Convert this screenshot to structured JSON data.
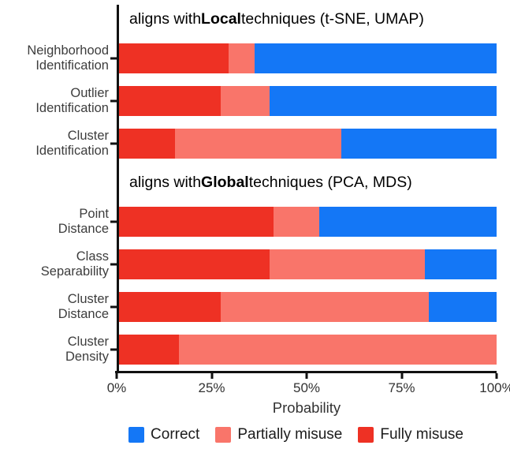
{
  "chart_data": {
    "type": "bar",
    "orientation": "horizontal",
    "stacked": true,
    "title": "",
    "xlabel": "Probability",
    "ylabel": "",
    "xlim": [
      0,
      100
    ],
    "x_ticks": [
      {
        "value": 0,
        "label": "0%"
      },
      {
        "value": 25,
        "label": "25%"
      },
      {
        "value": 50,
        "label": "50%"
      },
      {
        "value": 75,
        "label": "75%"
      },
      {
        "value": 100,
        "label": "100%"
      }
    ],
    "grid": false,
    "legend_position": "bottom",
    "series_order": [
      "fully_misuse",
      "partially_misuse",
      "correct"
    ],
    "series_colors": {
      "correct": "#1477F6",
      "partially_misuse": "#F9756A",
      "fully_misuse": "#EE3124"
    },
    "groups": [
      {
        "header": {
          "prefix": "aligns with ",
          "bold": "Local",
          "suffix": " techniques (t-SNE, UMAP)"
        },
        "rows": [
          {
            "label_line1": "Neighborhood",
            "label_line2": "Identification",
            "values": {
              "fully_misuse": 29,
              "partially_misuse": 7,
              "correct": 64
            }
          },
          {
            "label_line1": "Outlier",
            "label_line2": "Identification",
            "values": {
              "fully_misuse": 27,
              "partially_misuse": 13,
              "correct": 60
            }
          },
          {
            "label_line1": "Cluster",
            "label_line2": "Identification",
            "values": {
              "fully_misuse": 15,
              "partially_misuse": 44,
              "correct": 41
            }
          }
        ]
      },
      {
        "header": {
          "prefix": "aligns with ",
          "bold": "Global",
          "suffix": " techniques (PCA, MDS)"
        },
        "rows": [
          {
            "label_line1": "Point",
            "label_line2": "Distance",
            "values": {
              "fully_misuse": 41,
              "partially_misuse": 12,
              "correct": 47
            }
          },
          {
            "label_line1": "Class",
            "label_line2": "Separability",
            "values": {
              "fully_misuse": 40,
              "partially_misuse": 41,
              "correct": 19
            }
          },
          {
            "label_line1": "Cluster",
            "label_line2": "Distance",
            "values": {
              "fully_misuse": 27,
              "partially_misuse": 55,
              "correct": 18
            }
          },
          {
            "label_line1": "Cluster",
            "label_line2": "Density",
            "values": {
              "fully_misuse": 16,
              "partially_misuse": 84,
              "correct": 0
            }
          }
        ]
      }
    ]
  },
  "legend": {
    "items": [
      {
        "key": "correct",
        "label": "Correct",
        "color": "#1477F6"
      },
      {
        "key": "partially_misuse",
        "label": "Partially misuse",
        "color": "#F9756A"
      },
      {
        "key": "fully_misuse",
        "label": "Fully misuse",
        "color": "#EE3124"
      }
    ]
  }
}
